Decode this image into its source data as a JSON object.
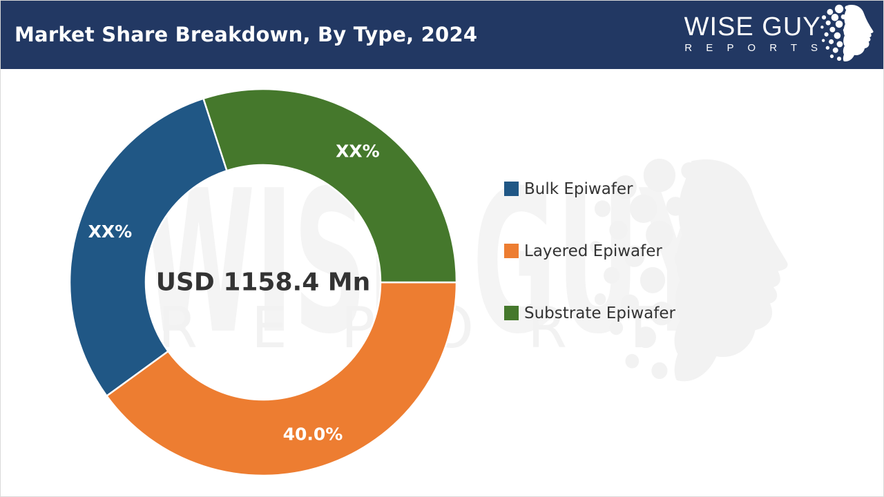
{
  "header": {
    "title": "Market Share Breakdown, By Type, 2024",
    "logo": {
      "line1": "WISE GUY",
      "line2": "R E P O R T S"
    }
  },
  "watermark": {
    "line1": "WISE GUY",
    "line2": "R E P O R T S"
  },
  "chart_data": {
    "type": "pie",
    "subtype": "donut",
    "title": "Market Share Breakdown, By Type, 2024",
    "center_total": "USD 1158.4 Mn",
    "series": [
      {
        "name": "Bulk Epiwafer",
        "value": 30,
        "display_label": "XX%",
        "color": "#205785"
      },
      {
        "name": "Layered Epiwafer",
        "value": 40,
        "display_label": "40.0%",
        "color": "#ED7D31"
      },
      {
        "name": "Substrate Epiwafer",
        "value": 30,
        "display_label": "XX%",
        "color": "#45782C"
      }
    ],
    "start_angle_deg": 108,
    "direction": "ccw",
    "inner_radius_ratio": 0.607,
    "label_radius_ratio": 0.832,
    "legend_position": "right",
    "colors": {
      "header_bar": "#223863",
      "center_text": "#333333",
      "legend_text": "#333333",
      "watermark": "#f2f2f2"
    }
  }
}
